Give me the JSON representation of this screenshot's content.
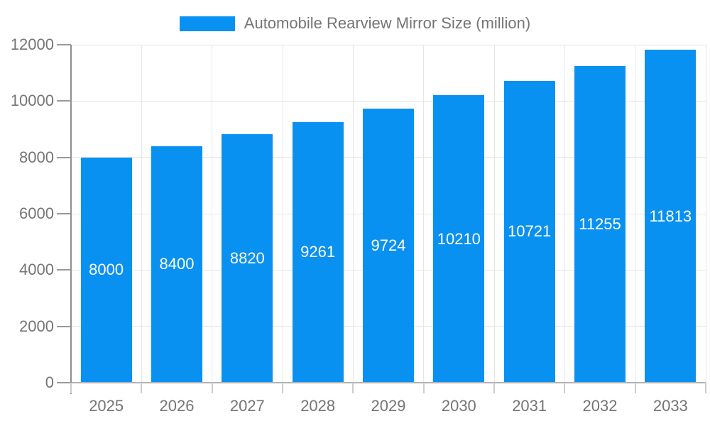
{
  "legend": {
    "label": "Automobile Rearview Mirror Size (million)"
  },
  "colors": {
    "bar": "#0991f2",
    "value_label": "#ffffff",
    "axis_text": "#757575",
    "grid": "#e6e6e6"
  },
  "chart_data": {
    "type": "bar",
    "title": "Automobile Rearview Mirror Size (million)",
    "categories": [
      "2025",
      "2026",
      "2027",
      "2028",
      "2029",
      "2030",
      "2031",
      "2032",
      "2033"
    ],
    "series": [
      {
        "name": "Automobile Rearview Mirror Size (million)",
        "values": [
          8000,
          8400,
          8820,
          9261,
          9724,
          10210,
          10721,
          11255,
          11813
        ]
      }
    ],
    "xlabel": "",
    "ylabel": "",
    "ylim": [
      0,
      12000
    ],
    "yticks": [
      0,
      2000,
      4000,
      6000,
      8000,
      10000,
      12000
    ],
    "grid": true,
    "legend_position": "top",
    "value_label_style": "inside-center-white"
  }
}
